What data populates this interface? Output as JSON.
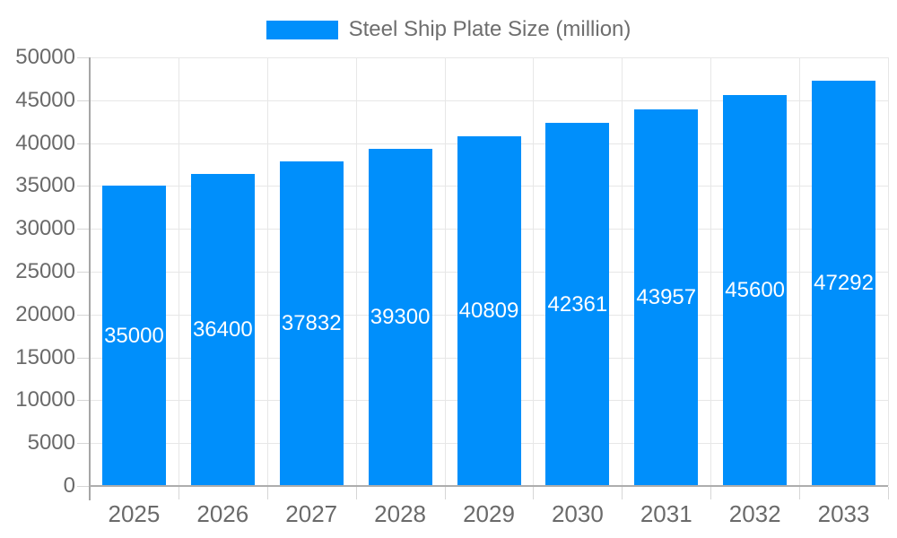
{
  "chart_data": {
    "type": "bar",
    "title": "",
    "categories": [
      "2025",
      "2026",
      "2027",
      "2028",
      "2029",
      "2030",
      "2031",
      "2032",
      "2033"
    ],
    "series": [
      {
        "name": "Steel Ship Plate Size (million)",
        "values": [
          35000,
          36400,
          37832,
          39300,
          40809,
          42361,
          43957,
          45600,
          47292
        ]
      }
    ],
    "bar_value_labels": [
      "35000",
      "36400",
      "37832",
      "39300",
      "40809",
      "42361",
      "43957",
      "45600",
      "47292"
    ],
    "ylim": [
      0,
      50000
    ],
    "ytick_step": 5000,
    "yticks": [
      0,
      5000,
      10000,
      15000,
      20000,
      25000,
      30000,
      35000,
      40000,
      45000,
      50000
    ],
    "ytick_labels": [
      "0",
      "5000",
      "10000",
      "15000",
      "20000",
      "25000",
      "30000",
      "35000",
      "40000",
      "45000",
      "50000"
    ],
    "xlabel": "",
    "ylabel": "",
    "grid": "both",
    "legend_position": "top",
    "colors": {
      "bar": "#008FFB",
      "bar_label_text": "#ffffff",
      "axis_text": "#6a6a6a",
      "legend_text": "#6e6e6e",
      "gridline": "#e7e7e7",
      "axis_line": "#a6a6a6",
      "tick": "#d6d6d6",
      "background": "#ffffff"
    }
  }
}
